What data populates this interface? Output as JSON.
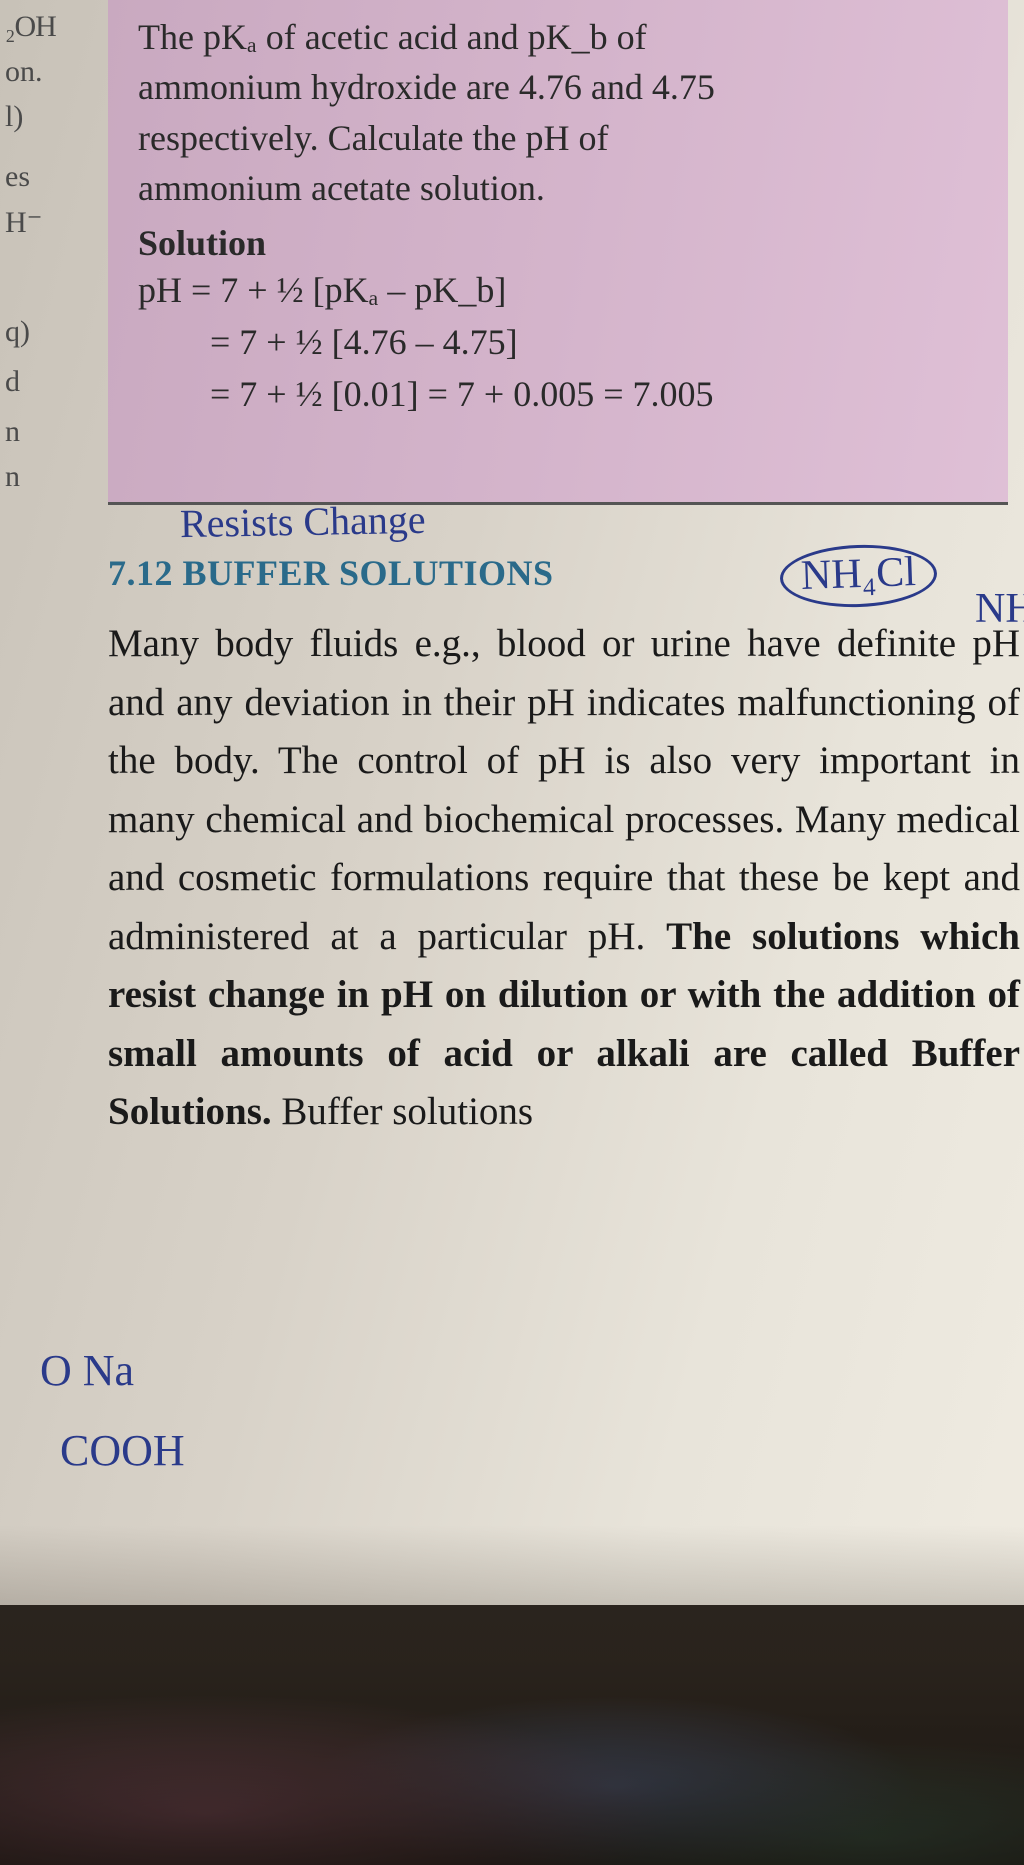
{
  "left_margin": {
    "l1": "₂OH",
    "l2": "on.",
    "l3": "l)",
    "l4": "es",
    "l5": "H⁻",
    "l6": "q)",
    "l7": "d",
    "l8": "n",
    "l9": "n"
  },
  "example": {
    "problem_line1": "The pKₐ of acetic acid and pK_b of",
    "problem_line2": "ammonium hydroxide are 4.76 and 4.75",
    "problem_line3": "respectively. Calculate the pH of",
    "problem_line4": "ammonium acetate solution.",
    "solution_label": "Solution",
    "eq1": "pH = 7 + ½ [pKₐ – pK_b]",
    "eq2": "= 7 + ½ [4.76 – 4.75]",
    "eq3": "= 7 + ½ [0.01] = 7 + 0.005 = 7.005"
  },
  "handwritten": {
    "resists": "Resists Change",
    "nh4cl": "NH₄Cl",
    "nh": "NH",
    "ona": "O Na",
    "cooh": "COOH"
  },
  "section": {
    "number": "7.12",
    "title": "BUFFER SOLUTIONS"
  },
  "body": {
    "p1a": "Many body fluids e.g., blood or urine have definite pH and any deviation in their pH indicates malfunctioning of the body. The control of pH is also very important in many chemical and biochemical processes. Many medical and cosmetic formulations require that these be kept and administered at a particular pH. ",
    "p1b": "The solutions which resist change in pH on dilution or with the addition of small amounts of acid or alkali are called Buffer Solutions.",
    "p1c": " Buffer solutions"
  },
  "colors": {
    "example_bg": "#d4b4cb",
    "page_bg": "#e0dcd2",
    "heading_color": "#2a6a8a",
    "ink_color": "#2a3a8a",
    "text_color": "#1a1a1a"
  }
}
